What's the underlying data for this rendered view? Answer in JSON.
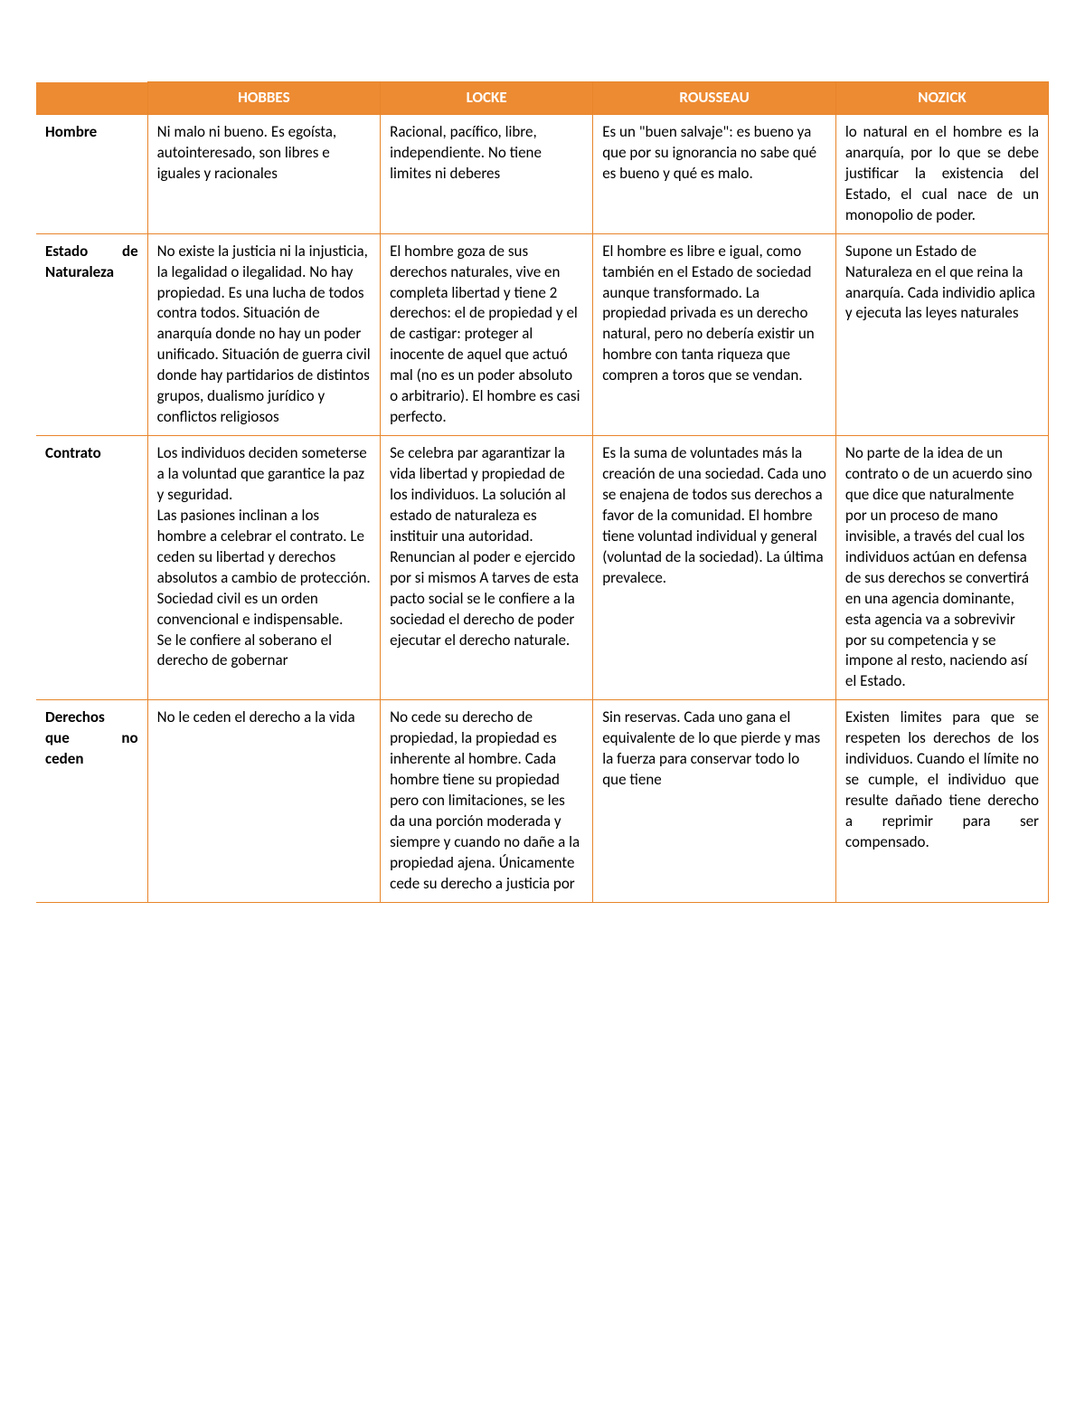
{
  "table": {
    "header_bg": "#ed8b33",
    "border_color": "#e8852a",
    "text_color": "#000000",
    "header_text_color": "#ffffff",
    "font_size_pt": 13,
    "columns": [
      {
        "label": "",
        "width_pct": 11
      },
      {
        "label": "HOBBES",
        "width_pct": 23
      },
      {
        "label": "LOCKE",
        "width_pct": 21
      },
      {
        "label": "ROUSSEAU",
        "width_pct": 24
      },
      {
        "label": "NOZICK",
        "width_pct": 21
      }
    ],
    "rows": [
      {
        "label": "Hombre",
        "hobbes": "Ni malo ni bueno. Es egoísta, autointeresado, son libres e iguales y racionales",
        "locke": "Racional, pacífico, libre, independiente. No tiene limites ni deberes",
        "rousseau": "Es un \"buen salvaje\": es bueno ya que por su ignorancia no sabe qué es bueno y qué es malo.",
        "nozick": "lo natural en el hombre es la anarquía, por lo que se debe justificar la existencia del Estado, el cual nace de un monopolio de poder.",
        "nozick_justify": true
      },
      {
        "label": "Estado de Naturaleza",
        "label_justify": true,
        "hobbes": "No existe la justicia ni la injusticia, la legalidad o ilegalidad. No hay propiedad. Es una lucha de todos contra todos. Situación de anarquía donde no hay un poder unificado. Situación de guerra civil donde hay partidarios de distintos grupos, dualismo jurídico y conflictos religiosos",
        "locke": "El hombre goza de sus derechos naturales, vive en completa libertad y tiene 2 derechos: el de propiedad y el de castigar: proteger al inocente de aquel que actuó mal (no es un poder absoluto o arbitrario). El hombre es casi perfecto.",
        "rousseau": "El hombre es libre e igual, como también en el Estado de sociedad aunque transformado. La propiedad privada es un derecho natural, pero no debería existir un hombre con tanta riqueza que compren a toros que se vendan.",
        "nozick": "Supone un Estado de Naturaleza en el que reina la anarquía. Cada individio aplica y ejecuta las leyes naturales"
      },
      {
        "label": "Contrato",
        "hobbes": "Los individuos deciden someterse a la voluntad que garantice la paz y seguridad.\nLas pasiones inclinan a los hombre a celebrar el contrato. Le ceden su libertad y derechos absolutos a cambio de protección.\nSociedad civil es un orden convencional e indispensable.\nSe le confiere al soberano el derecho de gobernar",
        "locke": "Se celebra par agarantizar la vida libertad y propiedad de los individuos. La solución al estado de naturaleza es instituir una autoridad. Renuncian al poder e ejercido por si mismos A tarves de esta pacto social se le confiere a la sociedad el derecho de poder ejecutar el derecho naturale.",
        "rousseau": "Es la suma de voluntades más la creación de una sociedad. Cada uno se enajena de todos sus derechos a favor de la comunidad. El hombre tiene voluntad individual y general (voluntad de la sociedad). La última prevalece.",
        "nozick": "No parte de la idea de un contrato o de un acuerdo sino que dice que naturalmente por un proceso de mano invisible, a través del cual los individuos actúan en defensa de sus derechos se convertirá en una agencia dominante, esta agencia va a sobrevivir por su competencia y se impone al resto, naciendo así el Estado."
      },
      {
        "label": "Derechos que no ceden",
        "label_justify": true,
        "hobbes": "No le ceden el derecho a la vida",
        "locke": "No cede su derecho de propiedad, la propiedad es inherente al hombre. Cada hombre tiene su propiedad pero con limitaciones, se les da una porción moderada y siempre y cuando no dañe a la propiedad ajena. Únicamente cede su derecho a justicia por",
        "rousseau": "Sin reservas. Cada uno gana el equivalente de lo que pierde y mas la fuerza para conservar todo lo que tiene",
        "nozick": "Existen limites para que se respeten los derechos de los individuos. Cuando el límite no se cumple, el individuo que resulte dañado tiene derecho a reprimir para ser compensado.",
        "nozick_justify": true
      }
    ]
  }
}
